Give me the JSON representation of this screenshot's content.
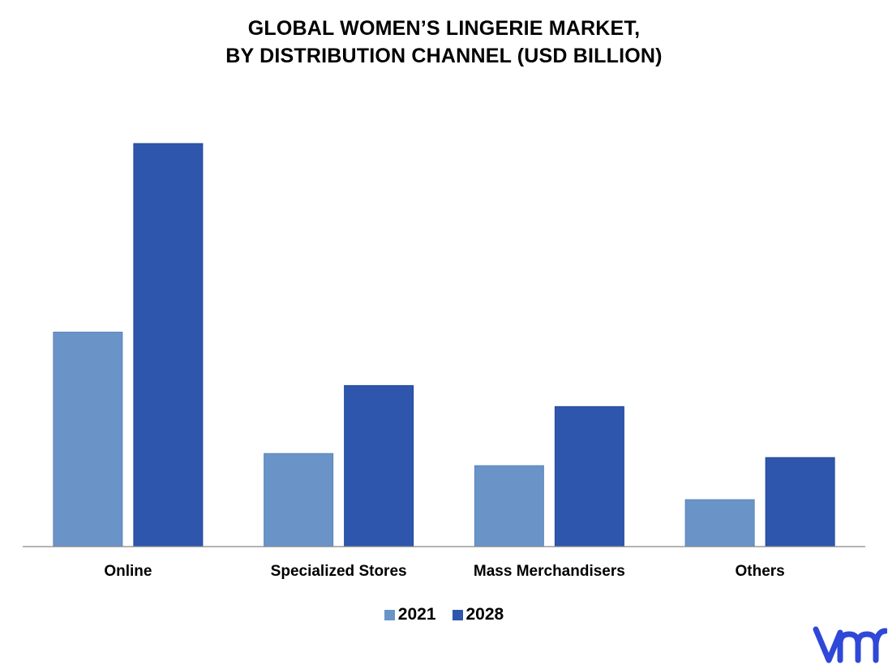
{
  "chart_data": {
    "type": "bar",
    "title": "GLOBAL WOMEN’S LINGERIE MARKET,",
    "subtitle": "BY DISTRIBUTION CHANNEL (USD BILLION)",
    "xlabel": "",
    "ylabel": "",
    "categories": [
      "Online",
      "Specialized Stores",
      "Mass Merchandisers",
      "Others"
    ],
    "series": [
      {
        "name": "2021",
        "values": [
          26.5,
          11.5,
          10.0,
          5.8
        ]
      },
      {
        "name": "2028",
        "values": [
          49.8,
          19.9,
          17.3,
          11.0
        ]
      }
    ],
    "ylim": [
      0,
      50
    ],
    "grid": false,
    "legend_position": "bottom"
  },
  "colors": {
    "series_2021": "#6a94c8",
    "series_2028": "#2e56ad",
    "axis": "#888888",
    "logo": "#2f48d8"
  },
  "logo": {
    "icon": "vmr-logo-icon"
  }
}
